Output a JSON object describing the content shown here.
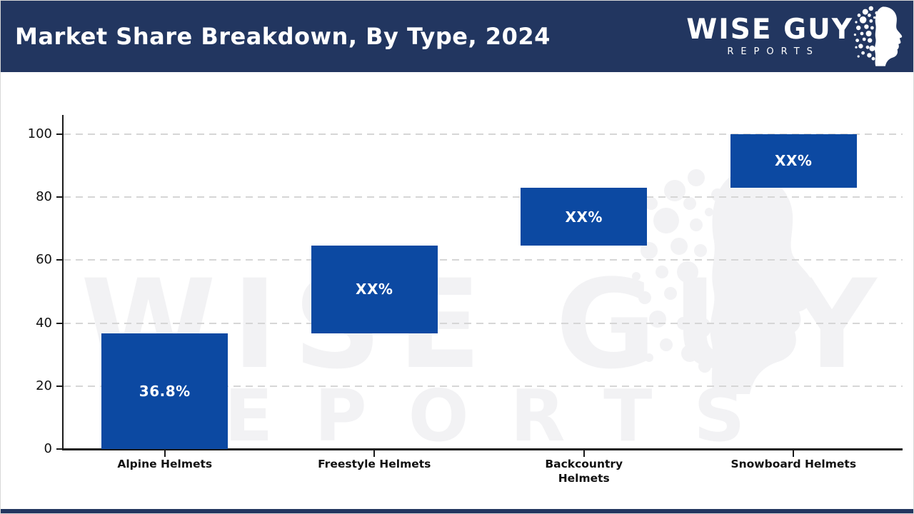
{
  "header": {
    "title": "Market Share Breakdown, By Type, 2024",
    "logo": {
      "line1": "WISE GUY",
      "line2": "REPORTS",
      "icon": "dotted-head-icon"
    }
  },
  "watermark": {
    "line1": "WISE GUY",
    "line2": "REPORTS"
  },
  "chart_data": {
    "type": "bar",
    "subtype": "floating-waterfall",
    "title": "Market Share Breakdown, By Type, 2024",
    "categories": [
      "Alpine Helmets",
      "Freestyle Helmets",
      "Backcountry\nHelmets",
      "Snowboard Helmets"
    ],
    "segments": [
      {
        "category": "Alpine Helmets",
        "start": 0,
        "end": 36.8,
        "value": 36.8,
        "label": "36.8%"
      },
      {
        "category": "Freestyle Helmets",
        "start": 36.8,
        "end": 64.6,
        "value": 27.8,
        "label": "XX%"
      },
      {
        "category": "Backcountry Helmets",
        "start": 64.6,
        "end": 83.0,
        "value": 18.4,
        "label": "XX%"
      },
      {
        "category": "Snowboard Helmets",
        "start": 83.0,
        "end": 100.0,
        "value": 17.0,
        "label": "XX%"
      }
    ],
    "xlabel": "",
    "ylabel": "",
    "ylim": [
      0,
      100
    ],
    "yticks": [
      0,
      20,
      40,
      60,
      80,
      100
    ],
    "grid": "horizontal-dashed",
    "legend": "none",
    "colors": {
      "bar": "#0c49a2",
      "bar_label": "#ffffff",
      "grid": "#d6d6d6",
      "axis": "#1a1a1a",
      "tick_label": "#111111",
      "header_bg": "#223660",
      "watermark": "#f2f2f4"
    }
  }
}
